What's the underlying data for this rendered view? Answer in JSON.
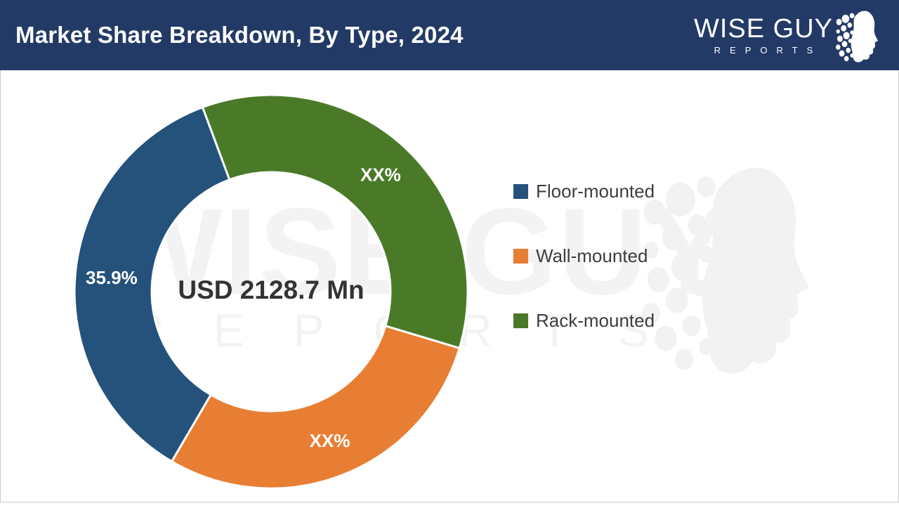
{
  "header": {
    "title": "Market Share Breakdown, By Type, 2024",
    "logo": {
      "line1": "WISE GUY",
      "line2": "REPORTS"
    }
  },
  "watermark": {
    "line1": "WISE GUY",
    "line2": "REPORTS"
  },
  "chart_data": {
    "type": "pie",
    "variant": "donut",
    "title": "Market Share Breakdown, By Type, 2024",
    "center_label": "USD 2128.7 Mn",
    "start_angle_deg": 110.4,
    "legend_position": "right",
    "segments": [
      {
        "label": "Rack-mounted",
        "value_label": "XX%",
        "percent": 35.3,
        "color": "#4a7a28"
      },
      {
        "label": "Wall-mounted",
        "value_label": "XX%",
        "percent": 28.8,
        "color": "#e87e33"
      },
      {
        "label": "Floor-mounted",
        "value_label": "35.9%",
        "percent": 35.9,
        "color": "#24527b"
      }
    ],
    "legend": [
      {
        "label": "Floor-mounted",
        "color": "#24527b"
      },
      {
        "label": "Wall-mounted",
        "color": "#e87e33"
      },
      {
        "label": "Rack-mounted",
        "color": "#4a7a28"
      }
    ],
    "colors": {
      "header_bg": "#233a66",
      "center_text": "#333333",
      "legend_text": "#3d3d3d",
      "watermark": "#f3f3f3",
      "segment_gap": "#ffffff"
    }
  }
}
